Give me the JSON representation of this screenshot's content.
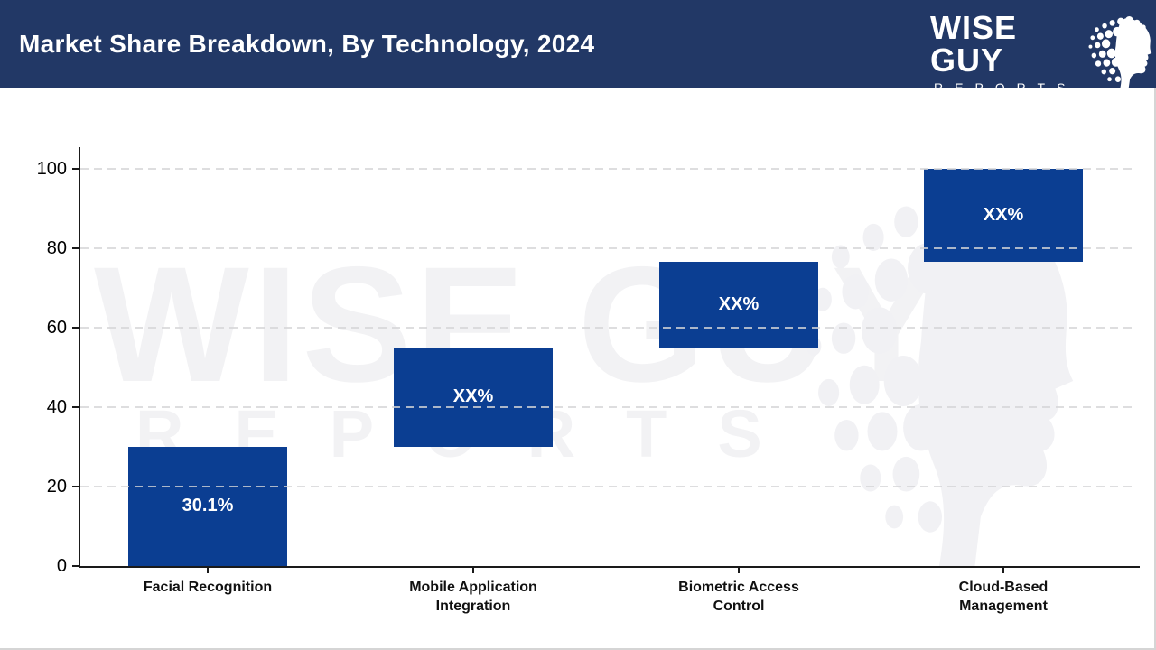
{
  "header": {
    "title": "Market Share Breakdown, By Technology, 2024"
  },
  "logo": {
    "line1": "WISE GUY",
    "line2": "REPORTS"
  },
  "chart_data": {
    "type": "bar",
    "subtype": "waterfall",
    "title": "Market Share Breakdown, By Technology, 2024",
    "categories": [
      "Facial Recognition",
      "Mobile Application Integration",
      "Biometric Access Control",
      "Cloud-Based Management"
    ],
    "category_lines": [
      [
        "Facial Recognition"
      ],
      [
        "Mobile Application",
        "Integration"
      ],
      [
        "Biometric Access",
        "Control"
      ],
      [
        "Cloud-Based",
        "Management"
      ]
    ],
    "segments": [
      {
        "category": "Facial Recognition",
        "start": 0,
        "end": 30.1,
        "label": "30.1%"
      },
      {
        "category": "Mobile Application Integration",
        "start": 30.1,
        "end": 55,
        "label": "XX%"
      },
      {
        "category": "Biometric Access Control",
        "start": 55,
        "end": 76.5,
        "label": "XX%"
      },
      {
        "category": "Cloud-Based Management",
        "start": 76.5,
        "end": 100,
        "label": "XX%"
      }
    ],
    "xlabel": "",
    "ylabel": "",
    "yticks": [
      0,
      20,
      40,
      60,
      80,
      100
    ],
    "ylim": [
      0,
      105
    ],
    "grid": "horizontal dashed",
    "legend_position": "none",
    "bar_color": "#0b3e92",
    "bar_label_color": "#ffffff",
    "axis_color": "#1a1a1a",
    "header_color": "#223866",
    "watermark_color": "#f2f2f4"
  }
}
